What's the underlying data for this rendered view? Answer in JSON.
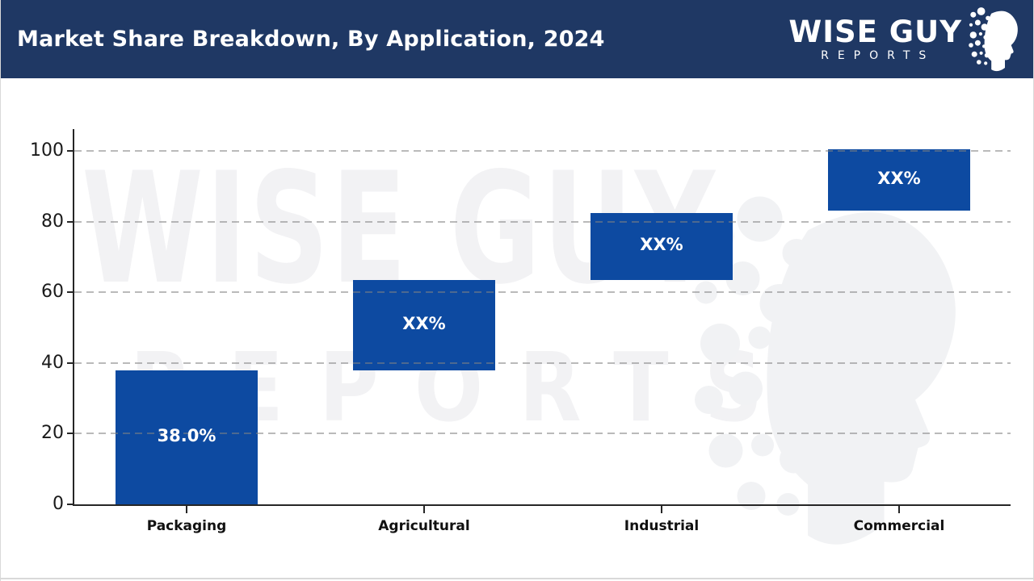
{
  "header": {
    "title": "Market Share Breakdown, By Application, 2024",
    "bg_color": "#1f3864",
    "logo": {
      "line1": "WISE GUY",
      "line2": "REPORTS"
    }
  },
  "watermark": {
    "line1": "WISE GUY",
    "line2": "REPORTS"
  },
  "chart_data": {
    "type": "bar",
    "subtype": "floating-waterfall",
    "title": "Market Share Breakdown, By Application, 2024",
    "categories": [
      "Packaging",
      "Agricultural",
      "Industrial",
      "Commercial"
    ],
    "segments": [
      {
        "category": "Packaging",
        "start": 0,
        "end": 38,
        "label": "38.0%"
      },
      {
        "category": "Agricultural",
        "start": 38,
        "end": 63.5,
        "label": "XX%"
      },
      {
        "category": "Industrial",
        "start": 63.5,
        "end": 82.5,
        "label": "XX%"
      },
      {
        "category": "Commercial",
        "start": 83,
        "end": 100.5,
        "label": "XX%"
      }
    ],
    "xlabel": "",
    "ylabel": "",
    "ylim": [
      0,
      100
    ],
    "yticks": [
      0,
      20,
      40,
      60,
      80,
      100
    ],
    "grid": "horizontal-dashed",
    "legend": "none",
    "bar_color": "#0d4aa1",
    "bar_label_color": "#ffffff",
    "axis_color": "#262626",
    "grid_color": "#bdbdbd"
  }
}
